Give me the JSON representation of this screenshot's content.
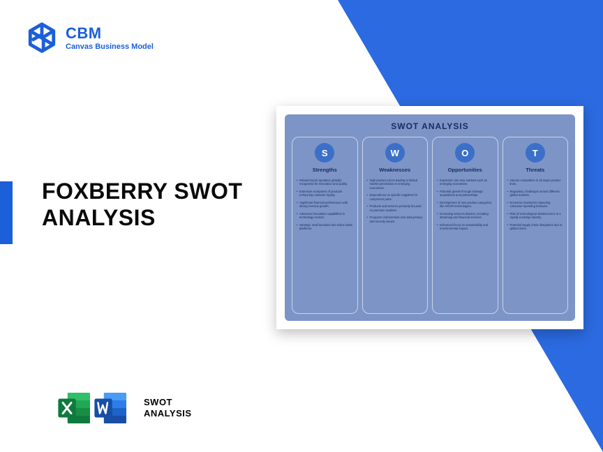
{
  "colors": {
    "brand_blue": "#1b5fd9",
    "triangle_blue": "#2b6ae0",
    "dark_text": "#0a0a0a",
    "swot_bg": "#7d94c7",
    "swot_circle": "#3b6fc8",
    "excel_dark": "#0f7a3e",
    "excel_light": "#1fa855",
    "word_dark": "#174ea6",
    "word_light": "#2b7de9"
  },
  "header": {
    "title": "CBM",
    "subtitle": "Canvas Business Model"
  },
  "main_title": "FOXBERRY SWOT ANALYSIS",
  "footer": {
    "label_line1": "SWOT",
    "label_line2": "ANALYSIS"
  },
  "swot": {
    "heading": "SWOT ANALYSIS",
    "columns": [
      {
        "letter": "S",
        "title": "Strengths",
        "items": [
          "Robust brand reputation globally recognized for innovation and quality.",
          "Extensive ecosystem of products enhancing customer loyalty.",
          "Significant financial performance with strong revenue growth.",
          "Advanced innovation capabilities in technology sectors.",
          "Strategic retail locations and online sales platforms."
        ]
      },
      {
        "letter": "W",
        "title": "Weaknesses",
        "items": [
          "High product prices leading to limited market penetration in emerging economies.",
          "Dependence on specific suppliers for component parts.",
          "Products and services primarily focused on premium markets.",
          "Frequent controversies over data privacy and security issues."
        ]
      },
      {
        "letter": "O",
        "title": "Opportunities",
        "items": [
          "Expansion into new markets such as emerging economies.",
          "Potential growth through strategic acquisitions and partnerships.",
          "Development of new product categories, like AR/VR technologies.",
          "Increasing services division, including streaming and financial services.",
          "Enhanced focus on sustainability and environmental impact."
        ]
      },
      {
        "letter": "T",
        "title": "Threats",
        "items": [
          "Intense competition in all major product lines.",
          "Regulatory challenges across different global markets.",
          "Economic downturns impacting consumer spending behavior.",
          "Risk of technological obsolescence in a rapidly evolving industry.",
          "Potential supply chain disruptions due to global crises."
        ]
      }
    ]
  }
}
